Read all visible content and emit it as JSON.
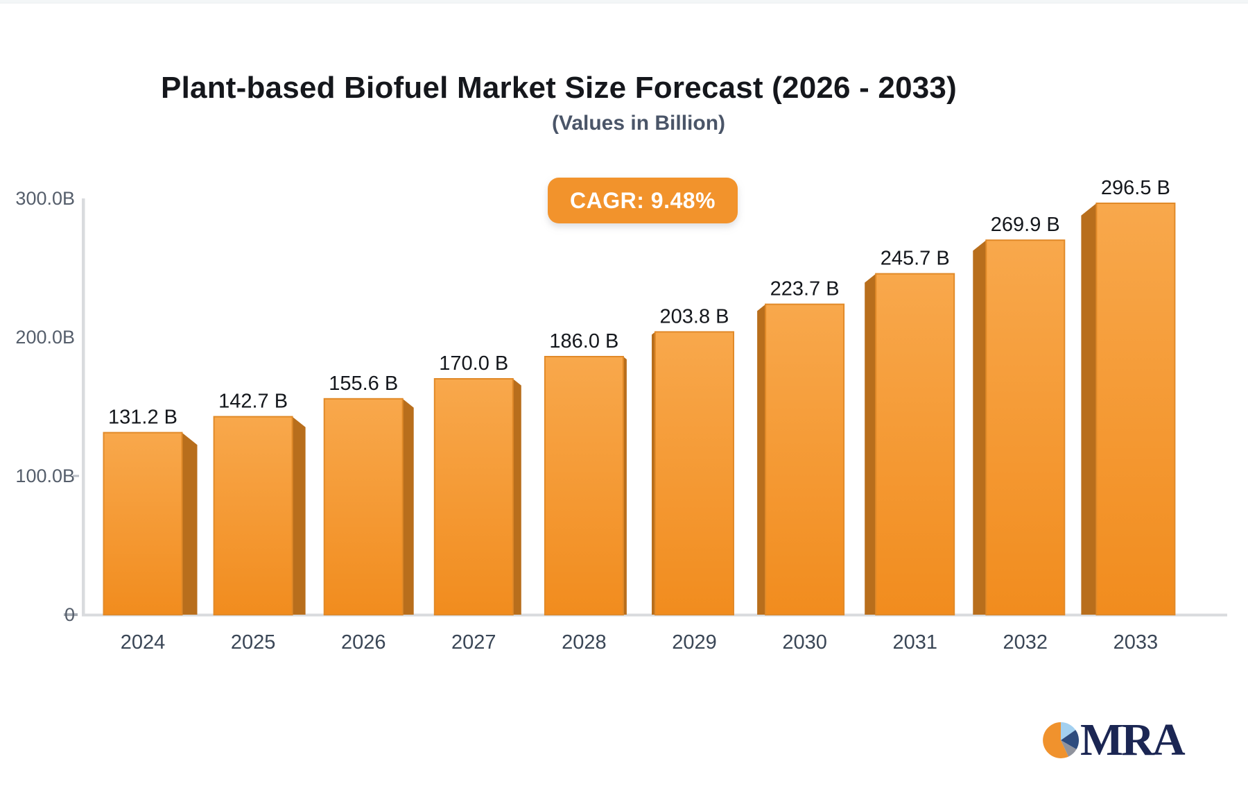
{
  "chart_data": {
    "type": "bar",
    "title": "Plant-based Biofuel Market Size Forecast (2026 - 2033)",
    "subtitle": "(Values in Billion)",
    "annotation_badge": "CAGR: 9.48%",
    "categories": [
      "2024",
      "2025",
      "2026",
      "2027",
      "2028",
      "2029",
      "2030",
      "2031",
      "2032",
      "2033"
    ],
    "values": [
      131.2,
      142.7,
      155.6,
      170.0,
      186.0,
      203.8,
      223.7,
      245.7,
      269.9,
      296.5
    ],
    "value_labels": [
      "131.2 B",
      "142.7 B",
      "155.6 B",
      "170.0 B",
      "186.0 B",
      "203.8 B",
      "223.7 B",
      "245.7 B",
      "269.9 B",
      "296.5 B"
    ],
    "xlabel": "",
    "ylabel": "",
    "ylim": [
      0,
      300
    ],
    "yticks": [
      {
        "label": "0",
        "value": 0
      },
      {
        "label": "100.0B",
        "value": 100
      },
      {
        "label": "200.0B",
        "value": 200
      },
      {
        "label": "300.0B",
        "value": 300
      }
    ],
    "grid": false,
    "legend": "none",
    "bar_style": "3d-perspective",
    "colors": {
      "bar_top": "#F8A84C",
      "bar_bottom": "#F18C1E",
      "bar_border": "#E18A29",
      "bar_side": "#B86E1C",
      "value_label": "#14171c",
      "category_label": "#3a4656",
      "ytick_label": "#555e6b",
      "axis_line": "#d9dbde",
      "badge_bg": "#f2932c",
      "badge_text": "#ffffff",
      "title": "#15171c",
      "subtitle": "#4a5568"
    }
  },
  "logo": {
    "text": "MRA",
    "text_color": "#1B2653",
    "pie_colors": {
      "orange": "#F0922D",
      "light_blue": "#A3D0F0",
      "navy": "#2E4C7E",
      "gray": "#90939D"
    }
  }
}
